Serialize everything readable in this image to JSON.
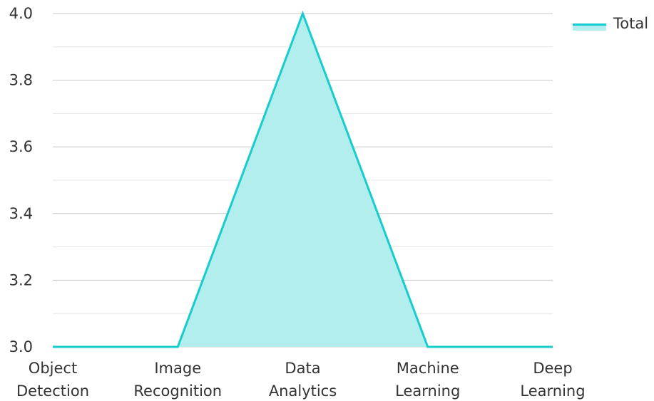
{
  "chart_data": {
    "type": "area",
    "categories": [
      [
        "Object",
        "Detection"
      ],
      [
        "Image",
        "Recognition"
      ],
      [
        "Data",
        "Analytics"
      ],
      [
        "Machine",
        "Learning"
      ],
      [
        "Deep",
        "Learning"
      ]
    ],
    "series": [
      {
        "name": "Total",
        "values": [
          3.0,
          3.0,
          4.0,
          3.0,
          3.0
        ]
      }
    ],
    "ylim": [
      3.0,
      4.0
    ],
    "yticks": [
      "3.0",
      "3.2",
      "3.4",
      "3.6",
      "3.8",
      "4.0"
    ],
    "grid": true,
    "legend": "top-right",
    "colors": {
      "line": "#17cccc",
      "fill": "#b2eeee",
      "grid": "#c8c8c8",
      "grid_minor": "#e6e6e6"
    }
  }
}
